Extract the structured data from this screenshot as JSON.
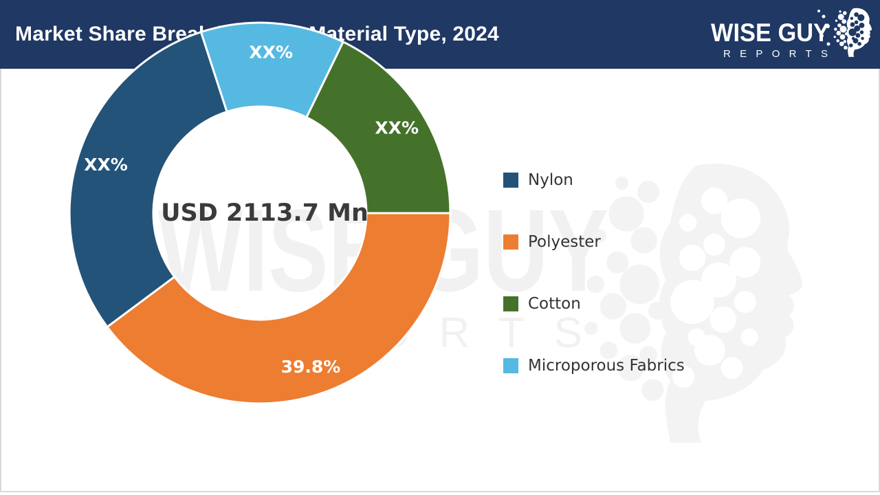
{
  "header": {
    "title": "Market Share Breakdown, By Material Type, 2024",
    "bg_color": "#1f3864",
    "logo": {
      "line1": "WISE GUY",
      "line2": "REPORTS"
    }
  },
  "watermark": {
    "line1": "WISE GUY",
    "line2": "REPORTS"
  },
  "chart_data": {
    "type": "donut",
    "title": "Market Share Breakdown, By Material Type, 2024",
    "center_label": "USD 2113.7 Mn",
    "start_angle_deg": 108,
    "direction": "counterclockwise",
    "inner_radius_ratio": 0.56,
    "legend_position": "right",
    "slice_border_color": "#ffffff",
    "series": [
      {
        "name": "Nylon",
        "label": "XX%",
        "value": 30.2,
        "color": "#235379"
      },
      {
        "name": "Polyester",
        "label": "39.8%",
        "value": 39.8,
        "color": "#ed7d31"
      },
      {
        "name": "Cotton",
        "label": "XX%",
        "value": 17.8,
        "color": "#45722a"
      },
      {
        "name": "Microporous Fabrics",
        "label": "XX%",
        "value": 12.2,
        "color": "#56b9e2"
      }
    ]
  },
  "colors": {
    "header_bg": "#1f3864",
    "watermark": "#f1f1f1",
    "watermark_face": "#f3f3f3",
    "center_text": "#3a3a3a",
    "legend_text": "#333333",
    "border": "#d9d9d9"
  }
}
